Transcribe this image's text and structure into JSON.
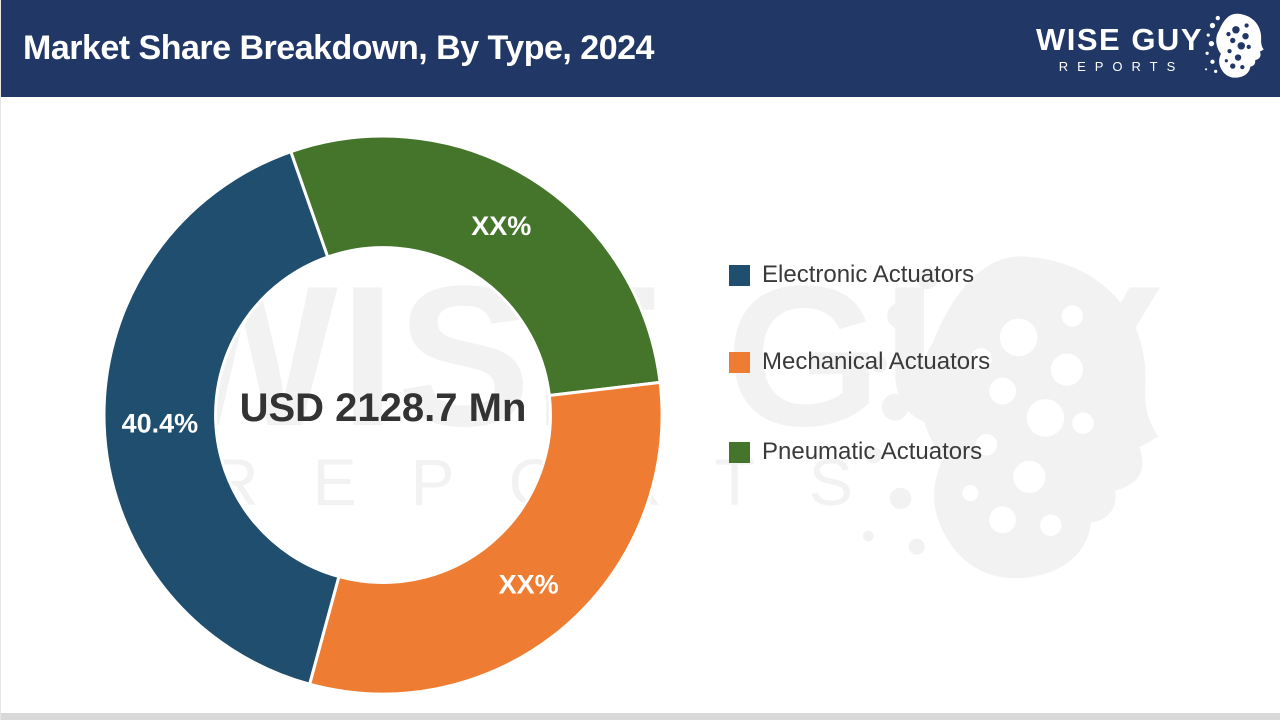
{
  "header": {
    "title": "Market Share Breakdown, By Type, 2024",
    "logo": {
      "line1": "WISE GUY",
      "line2": "REPORTS"
    }
  },
  "chart_data": {
    "type": "donut",
    "title": "Market Share Breakdown, By Type, 2024",
    "center_label": "USD 2128.7 Mn",
    "start_angle_deg": -19.3,
    "inner_radius_ratio": 0.6,
    "slices": [
      {
        "name": "Pneumatic Actuators",
        "value_pct": 28.5,
        "label": "XX%",
        "color": "#44752a"
      },
      {
        "name": "Mechanical Actuators",
        "value_pct": 31.1,
        "label": "XX%",
        "color": "#ee7d33"
      },
      {
        "name": "Electronic Actuators",
        "value_pct": 40.4,
        "label": "40.4%",
        "color": "#1f4e6e"
      }
    ]
  },
  "legend": {
    "items": [
      {
        "label": "Electronic Actuators",
        "color": "#1f4e6e"
      },
      {
        "label": "Mechanical Actuators",
        "color": "#ee7d33"
      },
      {
        "label": "Pneumatic Actuators",
        "color": "#44752a"
      }
    ]
  },
  "watermark": {
    "line1": "WISE GUY",
    "line2": "REPORTS"
  },
  "colors": {
    "header_bg": "#213765",
    "footer_bar": "#d9d9d9",
    "center_text": "#333333",
    "legend_text": "#3a3a3a"
  }
}
